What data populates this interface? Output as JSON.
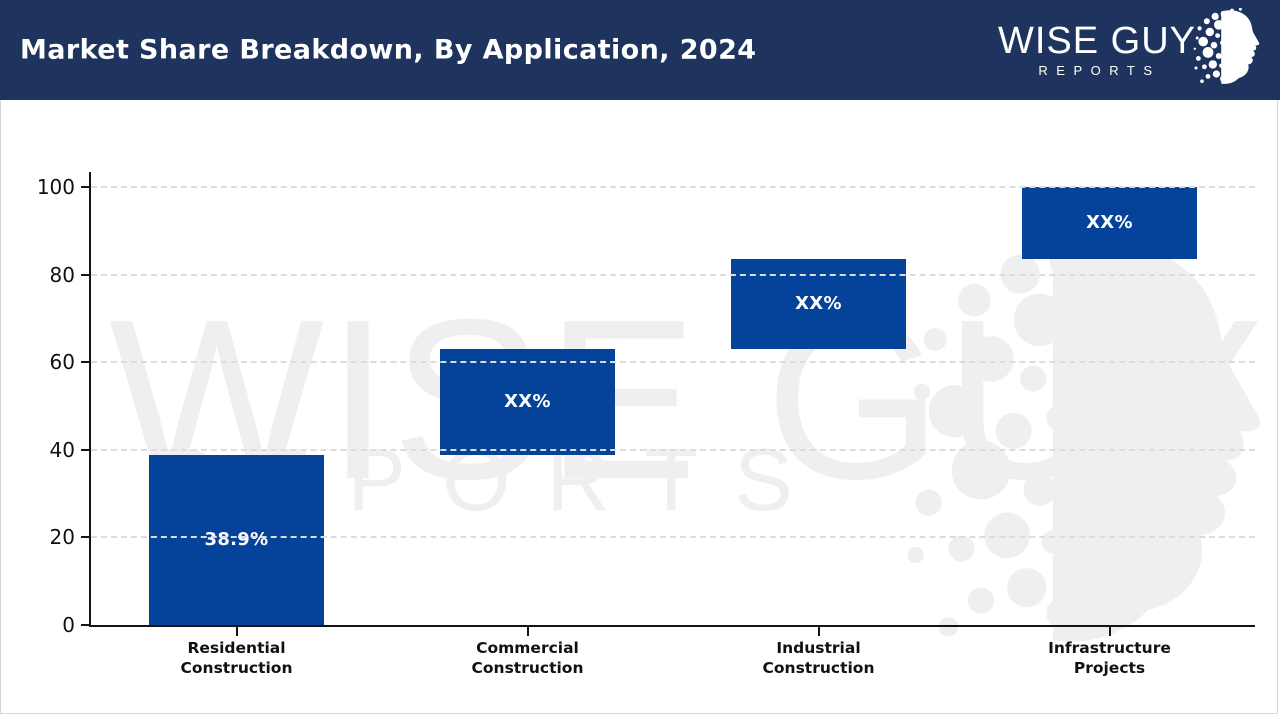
{
  "header": {
    "title": "Market Share Breakdown, By Application, 2024",
    "logo": {
      "line1": "WISE GUY",
      "line2": "REPORTS"
    }
  },
  "watermark": {
    "line1": "WISE GUY",
    "line2": "REPORTS"
  },
  "chart_data": {
    "type": "bar",
    "subtype": "waterfall",
    "title": "Market Share Breakdown, By Application, 2024",
    "unit": "%",
    "categories": [
      "Residential Construction",
      "Commercial Construction",
      "Industrial Construction",
      "Infrastructure Projects"
    ],
    "category_lines": [
      [
        "Residential",
        "Construction"
      ],
      [
        "Commercial",
        "Construction"
      ],
      [
        "Industrial",
        "Construction"
      ],
      [
        "Infrastructure",
        "Projects"
      ]
    ],
    "segments": [
      {
        "category": "Residential Construction",
        "label": "38.9%",
        "start": 0,
        "end": 38.9
      },
      {
        "category": "Commercial Construction",
        "label": "XX%",
        "start": 38.9,
        "end": 63.0
      },
      {
        "category": "Industrial Construction",
        "label": "XX%",
        "start": 63.0,
        "end": 83.7
      },
      {
        "category": "Infrastructure Projects",
        "label": "XX%",
        "start": 83.7,
        "end": 100.0
      }
    ],
    "yticks": [
      0,
      20,
      40,
      60,
      80,
      100
    ],
    "ylim": [
      0,
      103.5
    ],
    "xlabel": "",
    "ylabel": "",
    "grid": true,
    "gridstyle": "dashed",
    "legend": false,
    "bar_width_fraction": 0.6,
    "colors": {
      "bar": "#054299",
      "bar_label": "#ffffff",
      "header_bg": "#1e345e",
      "axis": "#141414",
      "gridline": "#dcdcdc",
      "tick_text": "#111111",
      "watermark": "#efeff2",
      "panel_border": "#d8d8d8"
    }
  }
}
